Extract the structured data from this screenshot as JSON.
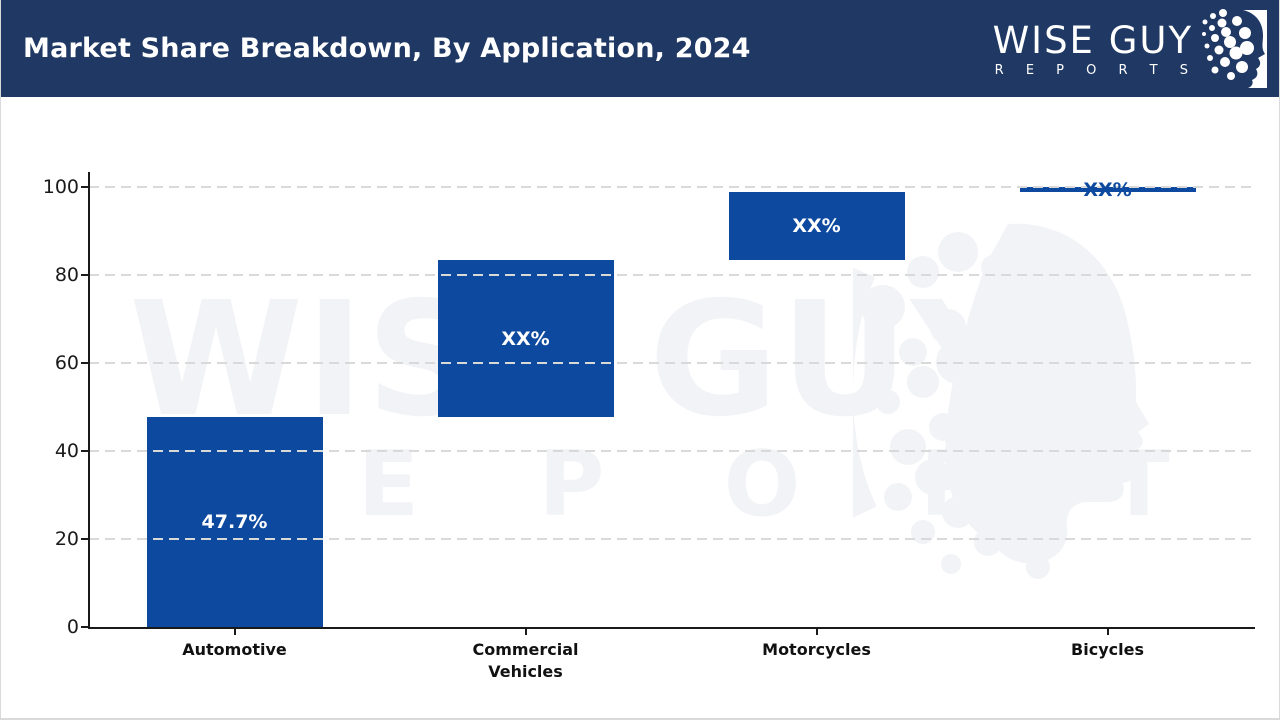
{
  "header": {
    "title": "Market Share Breakdown, By Application, 2024",
    "logo_line1": "WISE GUY",
    "logo_line2": "R E P O R T S"
  },
  "watermark": {
    "line1": "WISE GUY",
    "line2": "R E P O R T S"
  },
  "colors": {
    "header_bg": "#1f3864",
    "bar": "#0d4a9f",
    "grid": "#d9d9d9",
    "axis": "#1a1a1a",
    "watermark": "#f2f3f6",
    "label_on_bar": "#ffffff"
  },
  "chart_data": {
    "type": "bar",
    "variant": "waterfall",
    "title": "Market Share Breakdown, By Application, 2024",
    "categories": [
      "Automotive",
      "Commercial Vehicles",
      "Motorcycles",
      "Bicycles"
    ],
    "tick_labels": [
      "Automotive",
      "Commercial\nVehicles",
      "Motorcycles",
      "Bicycles"
    ],
    "segments": [
      {
        "category": "Automotive",
        "start": 0,
        "end": 47.7,
        "label": "47.7%",
        "label_color": "#ffffff"
      },
      {
        "category": "Commercial Vehicles",
        "start": 47.7,
        "end": 83.4,
        "label": "XX%",
        "label_color": "#ffffff"
      },
      {
        "category": "Motorcycles",
        "start": 83.4,
        "end": 98.8,
        "label": "XX%",
        "label_color": "#ffffff"
      },
      {
        "category": "Bicycles",
        "start": 98.8,
        "end": 100,
        "label": "XX%",
        "label_color": "#0d4a9f"
      }
    ],
    "ylim": [
      0,
      103.5
    ],
    "yticks": [
      0,
      20,
      40,
      60,
      80,
      100
    ],
    "grid": "horizontal-dashed",
    "legend": null,
    "xlabel": "",
    "ylabel": ""
  }
}
